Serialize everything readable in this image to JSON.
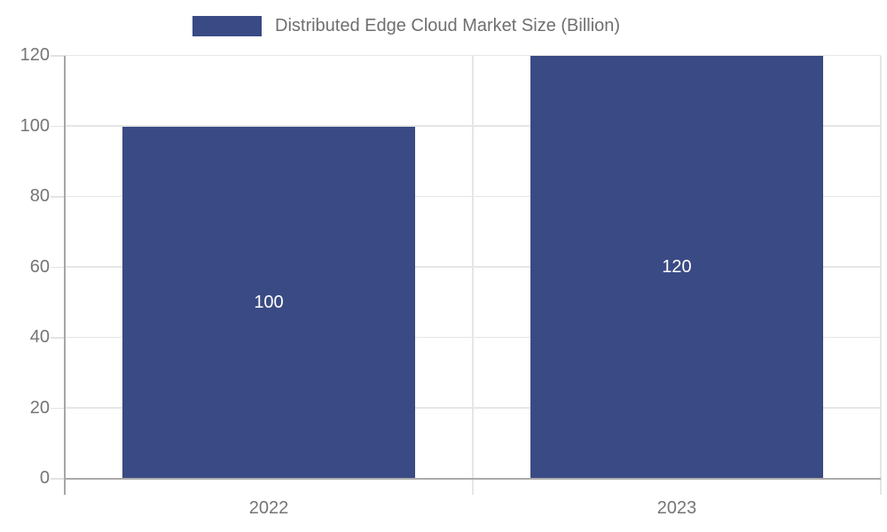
{
  "chart_data": {
    "type": "bar",
    "title": "Distributed Edge Cloud Market Size (Billion)",
    "categories": [
      "2022",
      "2023"
    ],
    "values": [
      100,
      120
    ],
    "bar_labels": [
      "100",
      "120"
    ],
    "ylim": [
      0,
      120
    ],
    "yticks": [
      0,
      20,
      40,
      60,
      80,
      100,
      120
    ],
    "grid": true,
    "legend_position": "top-center",
    "xlabel": "",
    "ylabel": "",
    "colors": {
      "bar": "#3a4a84",
      "grid": "#e6e6e6",
      "axis": "#a6a6a6",
      "baseline": "#ababab",
      "tick_text": "#757575",
      "legend_text": "#6f6f6f",
      "bar_label_text": "#ffffff"
    }
  }
}
